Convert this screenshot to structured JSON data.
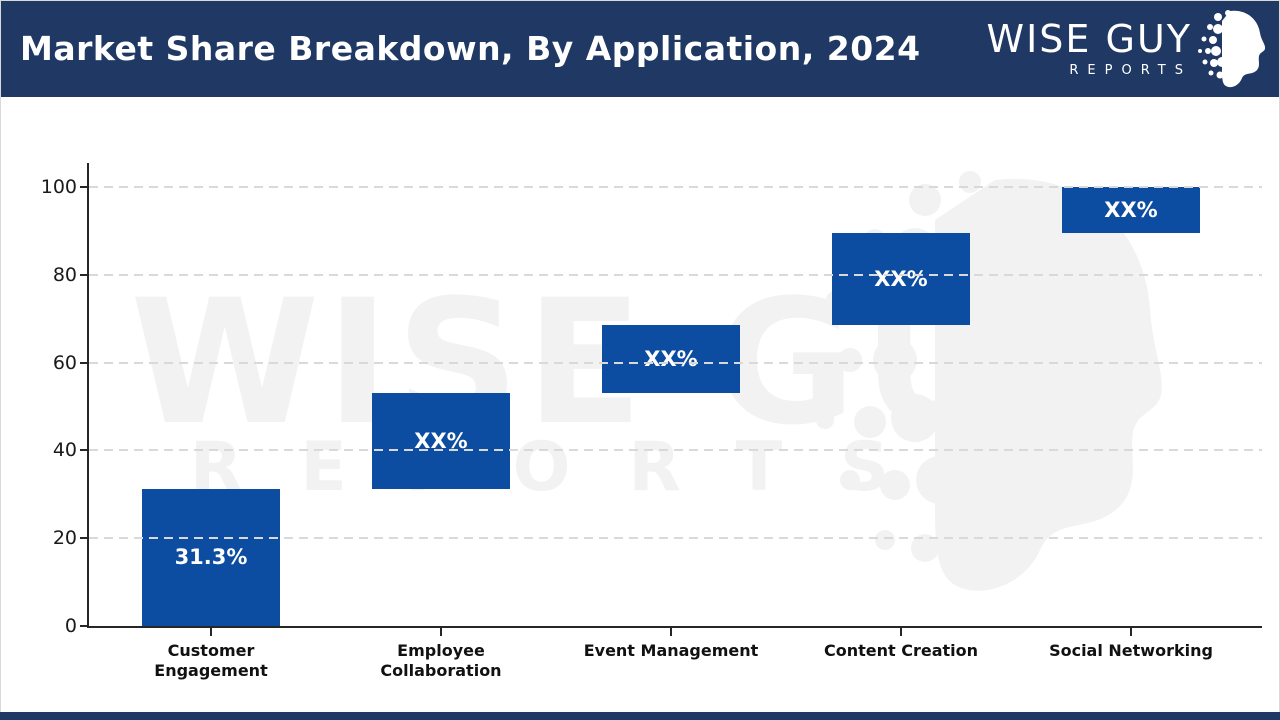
{
  "header": {
    "title": "Market Share Breakdown, By Application, 2024",
    "brand": {
      "line1": "WISE GUY",
      "line2": "REPORTS"
    },
    "bg_color": "#1f3864",
    "text_color": "#ffffff"
  },
  "watermark": {
    "line1": "WISE GUY",
    "line2": "REPORTS"
  },
  "footer": {
    "bg_color": "#1f3864"
  },
  "chart_data": {
    "type": "bar",
    "variant": "waterfall",
    "title": "Market Share Breakdown, By Application, 2024",
    "categories": [
      "Customer Engagement",
      "Employee Collaboration",
      "Event Management",
      "Content Creation",
      "Social Networking"
    ],
    "category_label_lines": [
      [
        "Customer",
        "Engagement"
      ],
      [
        "Employee",
        "Collaboration"
      ],
      [
        "Event Management"
      ],
      [
        "Content Creation"
      ],
      [
        "Social Networking"
      ]
    ],
    "segments": [
      {
        "category": "Customer Engagement",
        "start": 0,
        "end": 31.3,
        "label": "31.3%"
      },
      {
        "category": "Employee Collaboration",
        "start": 31.3,
        "end": 53,
        "label": "XX%"
      },
      {
        "category": "Event Management",
        "start": 53,
        "end": 68.5,
        "label": "XX%"
      },
      {
        "category": "Content Creation",
        "start": 68.5,
        "end": 89.5,
        "label": "XX%"
      },
      {
        "category": "Social Networking",
        "start": 89.5,
        "end": 100,
        "label": "XX%"
      }
    ],
    "yticks": [
      0,
      20,
      40,
      60,
      80,
      100
    ],
    "ylim": [
      0,
      107
    ],
    "xlabel": "",
    "ylabel": "",
    "grid": "horizontal dashed, drawn over bars",
    "legend": false,
    "bar_color": "#0d4da1",
    "bar_label_color": "#ffffff",
    "gridline_color": "#d9d9d9",
    "axis_color": "#262626"
  }
}
